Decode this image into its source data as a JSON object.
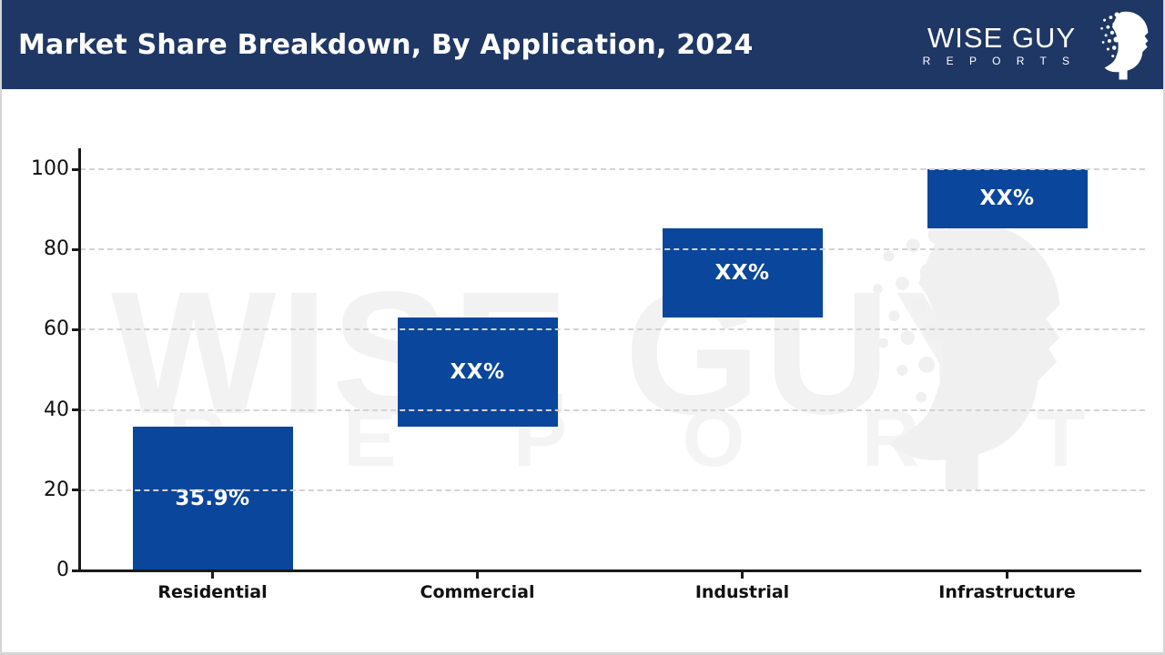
{
  "header": {
    "title": "Market Share Breakdown, By Application, 2024",
    "logo": {
      "wordmark": "WISE GUY",
      "subtext": "R E P O R T S"
    }
  },
  "watermark": {
    "wordmark": "WISE GUY",
    "subtext": "R E P O R T S"
  },
  "colors": {
    "header_bg": "#1f3765",
    "title_text": "#ffffff",
    "bar": "#0a469b",
    "bar_label": "#ffffff",
    "gridline": "#d3d3d3",
    "axis": "#1a1a1a",
    "watermark": "#f2f2f2",
    "frame_border": "#d5d5d5"
  },
  "chart_data": {
    "type": "bar",
    "subtype": "floating-waterfall",
    "title": "Market Share Breakdown, By Application, 2024",
    "categories": [
      "Residential",
      "Commercial",
      "Industrial",
      "Infrastructure"
    ],
    "segments": [
      {
        "category": "Residential",
        "start": 0,
        "end": 35.9,
        "label": "35.9%"
      },
      {
        "category": "Commercial",
        "start": 35.9,
        "end": 63,
        "label": "XX%"
      },
      {
        "category": "Industrial",
        "start": 63,
        "end": 85.3,
        "label": "XX%"
      },
      {
        "category": "Infrastructure",
        "start": 85.3,
        "end": 100,
        "label": "XX%"
      }
    ],
    "yticks": [
      0,
      20,
      40,
      60,
      80,
      100
    ],
    "ylim": [
      0,
      105
    ],
    "xlabel": "",
    "ylabel": "",
    "grid": "horizontal-dashed",
    "legend": "none",
    "bar_color": "#0a469b",
    "bar_label_color": "#ffffff"
  }
}
